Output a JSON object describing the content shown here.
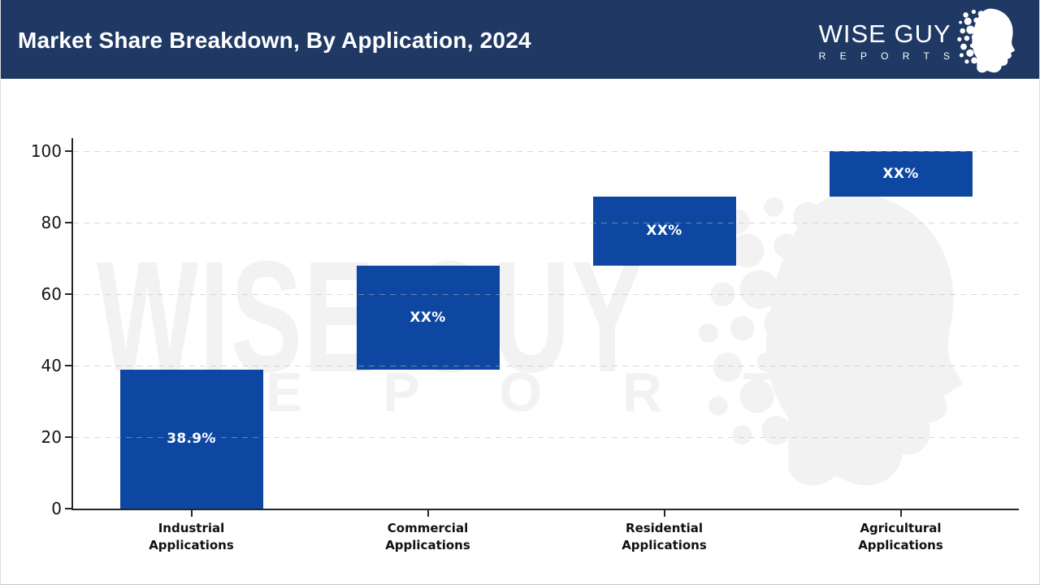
{
  "header": {
    "title": "Market Share Breakdown, By Application, 2024",
    "bg_color": "#1f3864",
    "logo": {
      "line1": "WISE GUY",
      "line2": "R E P O R T S",
      "icon": "wiseguy-face-icon"
    }
  },
  "watermark": {
    "line1": "WISE GUY",
    "line2": "R E P O R T S"
  },
  "chart_data": {
    "type": "bar",
    "subtype": "waterfall",
    "title": "Market Share Breakdown, By Application, 2024",
    "categories": [
      [
        "Industrial",
        "Applications"
      ],
      [
        "Commercial",
        "Applications"
      ],
      [
        "Residential",
        "Applications"
      ],
      [
        "Agricultural",
        "Applications"
      ]
    ],
    "segments": [
      {
        "category": "Industrial Applications",
        "start": 0,
        "end": 38.9,
        "label": "38.9%"
      },
      {
        "category": "Commercial Applications",
        "start": 38.9,
        "end": 68,
        "label": "XX%"
      },
      {
        "category": "Residential Applications",
        "start": 68,
        "end": 87.3,
        "label": "XX%"
      },
      {
        "category": "Agricultural Applications",
        "start": 87.3,
        "end": 100,
        "label": "XX%"
      }
    ],
    "yticks": [
      0,
      20,
      40,
      60,
      80,
      100
    ],
    "ylim": [
      0,
      100
    ],
    "xlabel": "",
    "ylabel": "",
    "bar_color": "#0d47a1",
    "bar_label_color": "#ffffff",
    "grid": "horizontal-dashed",
    "legend": "none"
  }
}
